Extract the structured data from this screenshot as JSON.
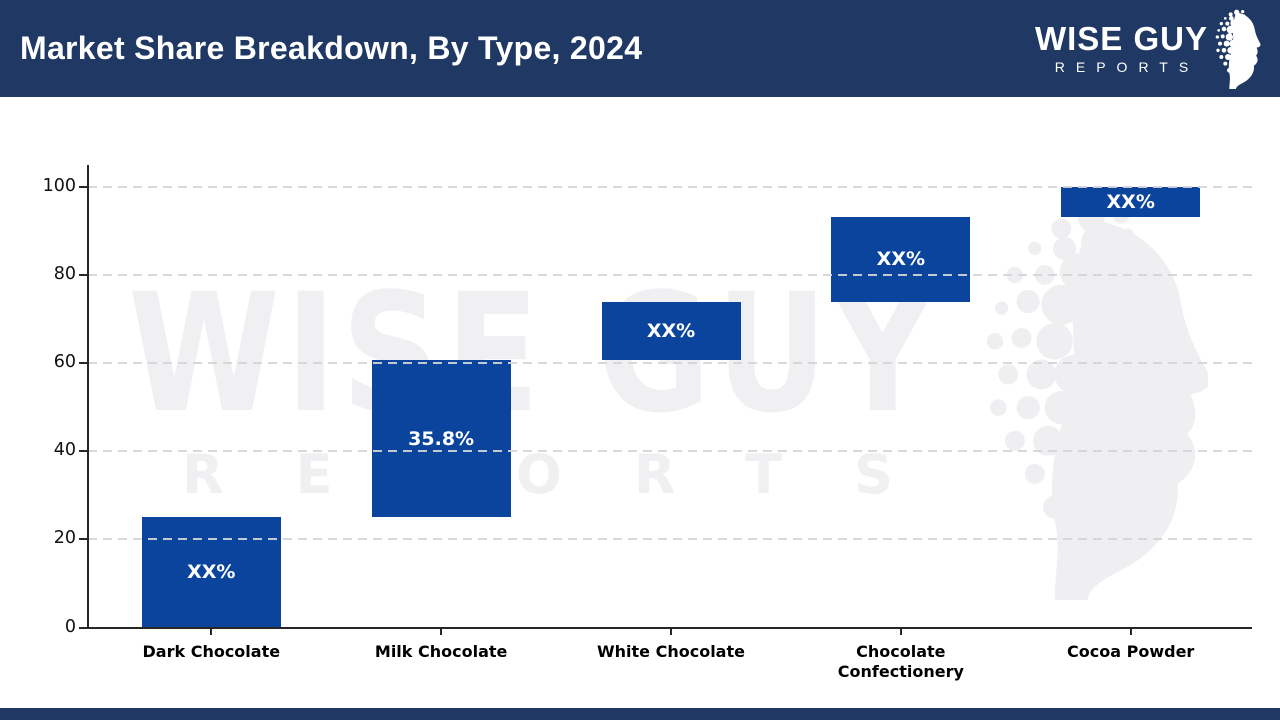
{
  "header": {
    "title": "Market Share Breakdown, By Type, 2024",
    "logo_line1": "WISE GUY",
    "logo_line2": "REPORTS"
  },
  "watermark": {
    "line1": "WISE GUY",
    "line2": "REPORTS"
  },
  "colors": {
    "header_bg": "#1f3864",
    "footer_bg": "#1f3864",
    "bar": "#0a449c",
    "grid": "#d5d5d7",
    "axis": "#262626",
    "watermark": "#f0f0f2"
  },
  "chart_data": {
    "type": "bar",
    "subtype": "waterfall",
    "title": "Market Share Breakdown, By Type, 2024",
    "xlabel": "",
    "ylabel": "",
    "categories": [
      "Dark Chocolate",
      "Milk Chocolate",
      "White Chocolate",
      "Chocolate Confectionery",
      "Cocoa Powder"
    ],
    "segments": [
      {
        "category": "Dark Chocolate",
        "label": "XX%",
        "start": 0,
        "end": 25.0,
        "value_shown": false
      },
      {
        "category": "Milk Chocolate",
        "label": "35.8%",
        "start": 25.0,
        "end": 60.8,
        "value_shown": true,
        "value": 35.8
      },
      {
        "category": "White Chocolate",
        "label": "XX%",
        "start": 60.8,
        "end": 73.9,
        "value_shown": false
      },
      {
        "category": "Chocolate Confectionery",
        "label": "XX%",
        "start": 73.9,
        "end": 93.2,
        "value_shown": false
      },
      {
        "category": "Cocoa Powder",
        "label": "XX%",
        "start": 93.2,
        "end": 100.0,
        "value_shown": false
      }
    ],
    "yticks": [
      0,
      20,
      40,
      60,
      80,
      100
    ],
    "ylim": [
      0,
      100
    ],
    "grid": true,
    "grid_style": "dashed",
    "legend": false,
    "bar_color": "#0a449c"
  }
}
